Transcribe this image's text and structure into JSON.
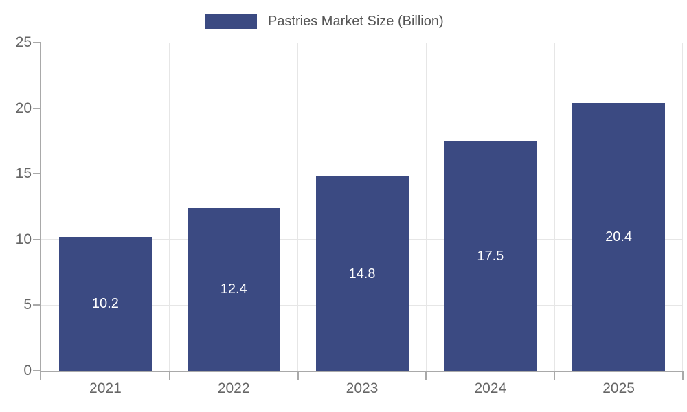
{
  "chart_data": {
    "type": "bar",
    "title": "Pastries Market Size (Billion)",
    "legend": [
      "Pastries Market Size (Billion)"
    ],
    "legend_position": "top",
    "categories": [
      "2021",
      "2022",
      "2023",
      "2024",
      "2025"
    ],
    "series": [
      {
        "name": "Pastries Market Size (Billion)",
        "values": [
          10.2,
          12.4,
          14.8,
          17.5,
          20.4
        ],
        "value_labels": [
          "10.2",
          "12.4",
          "14.8",
          "17.5",
          "20.4"
        ]
      }
    ],
    "xlabel": "",
    "ylabel": "",
    "ylim": [
      0,
      25
    ],
    "yticks": [
      0,
      5,
      10,
      15,
      20,
      25
    ],
    "grid": true,
    "colors": {
      "bar": "#3B4A82",
      "grid_line": "#E6E6E6",
      "axis_line": "#A9A9A9",
      "tick_label": "#666666",
      "legend_text": "#555555",
      "value_label": "#FFFFFF",
      "background": "#FFFFFF"
    }
  }
}
